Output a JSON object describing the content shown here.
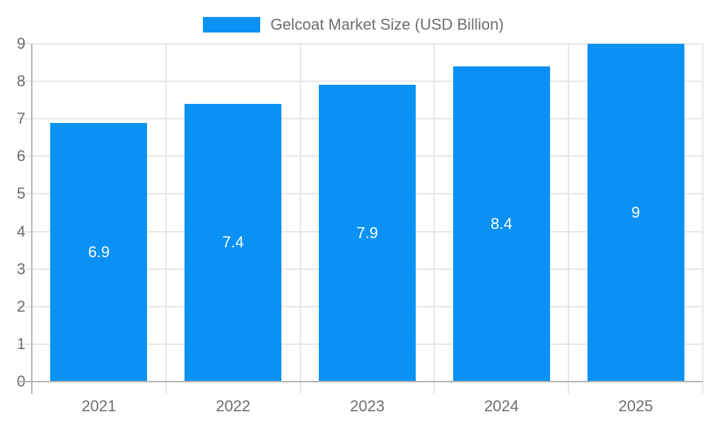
{
  "chart_data": {
    "type": "bar",
    "title": "Gelcoat Market Size (USD Billion)",
    "categories": [
      "2021",
      "2022",
      "2023",
      "2024",
      "2025"
    ],
    "values": [
      6.9,
      7.4,
      7.9,
      8.4,
      9
    ],
    "value_labels": [
      "6.9",
      "7.4",
      "7.9",
      "8.4",
      "9"
    ],
    "xlabel": "",
    "ylabel": "",
    "ylim": [
      0,
      9
    ],
    "ytick_step": 1,
    "ytick_labels": [
      "0",
      "1",
      "2",
      "3",
      "4",
      "5",
      "6",
      "7",
      "8",
      "9"
    ],
    "grid": "both",
    "legend_position": "top",
    "colors": {
      "bar": "#0991f5",
      "grid": "#e6e6e6",
      "axis": "#b3b3b3",
      "tick_label": "#6e6e6e",
      "value_label": "#ffffff",
      "background": "#ffffff"
    }
  }
}
